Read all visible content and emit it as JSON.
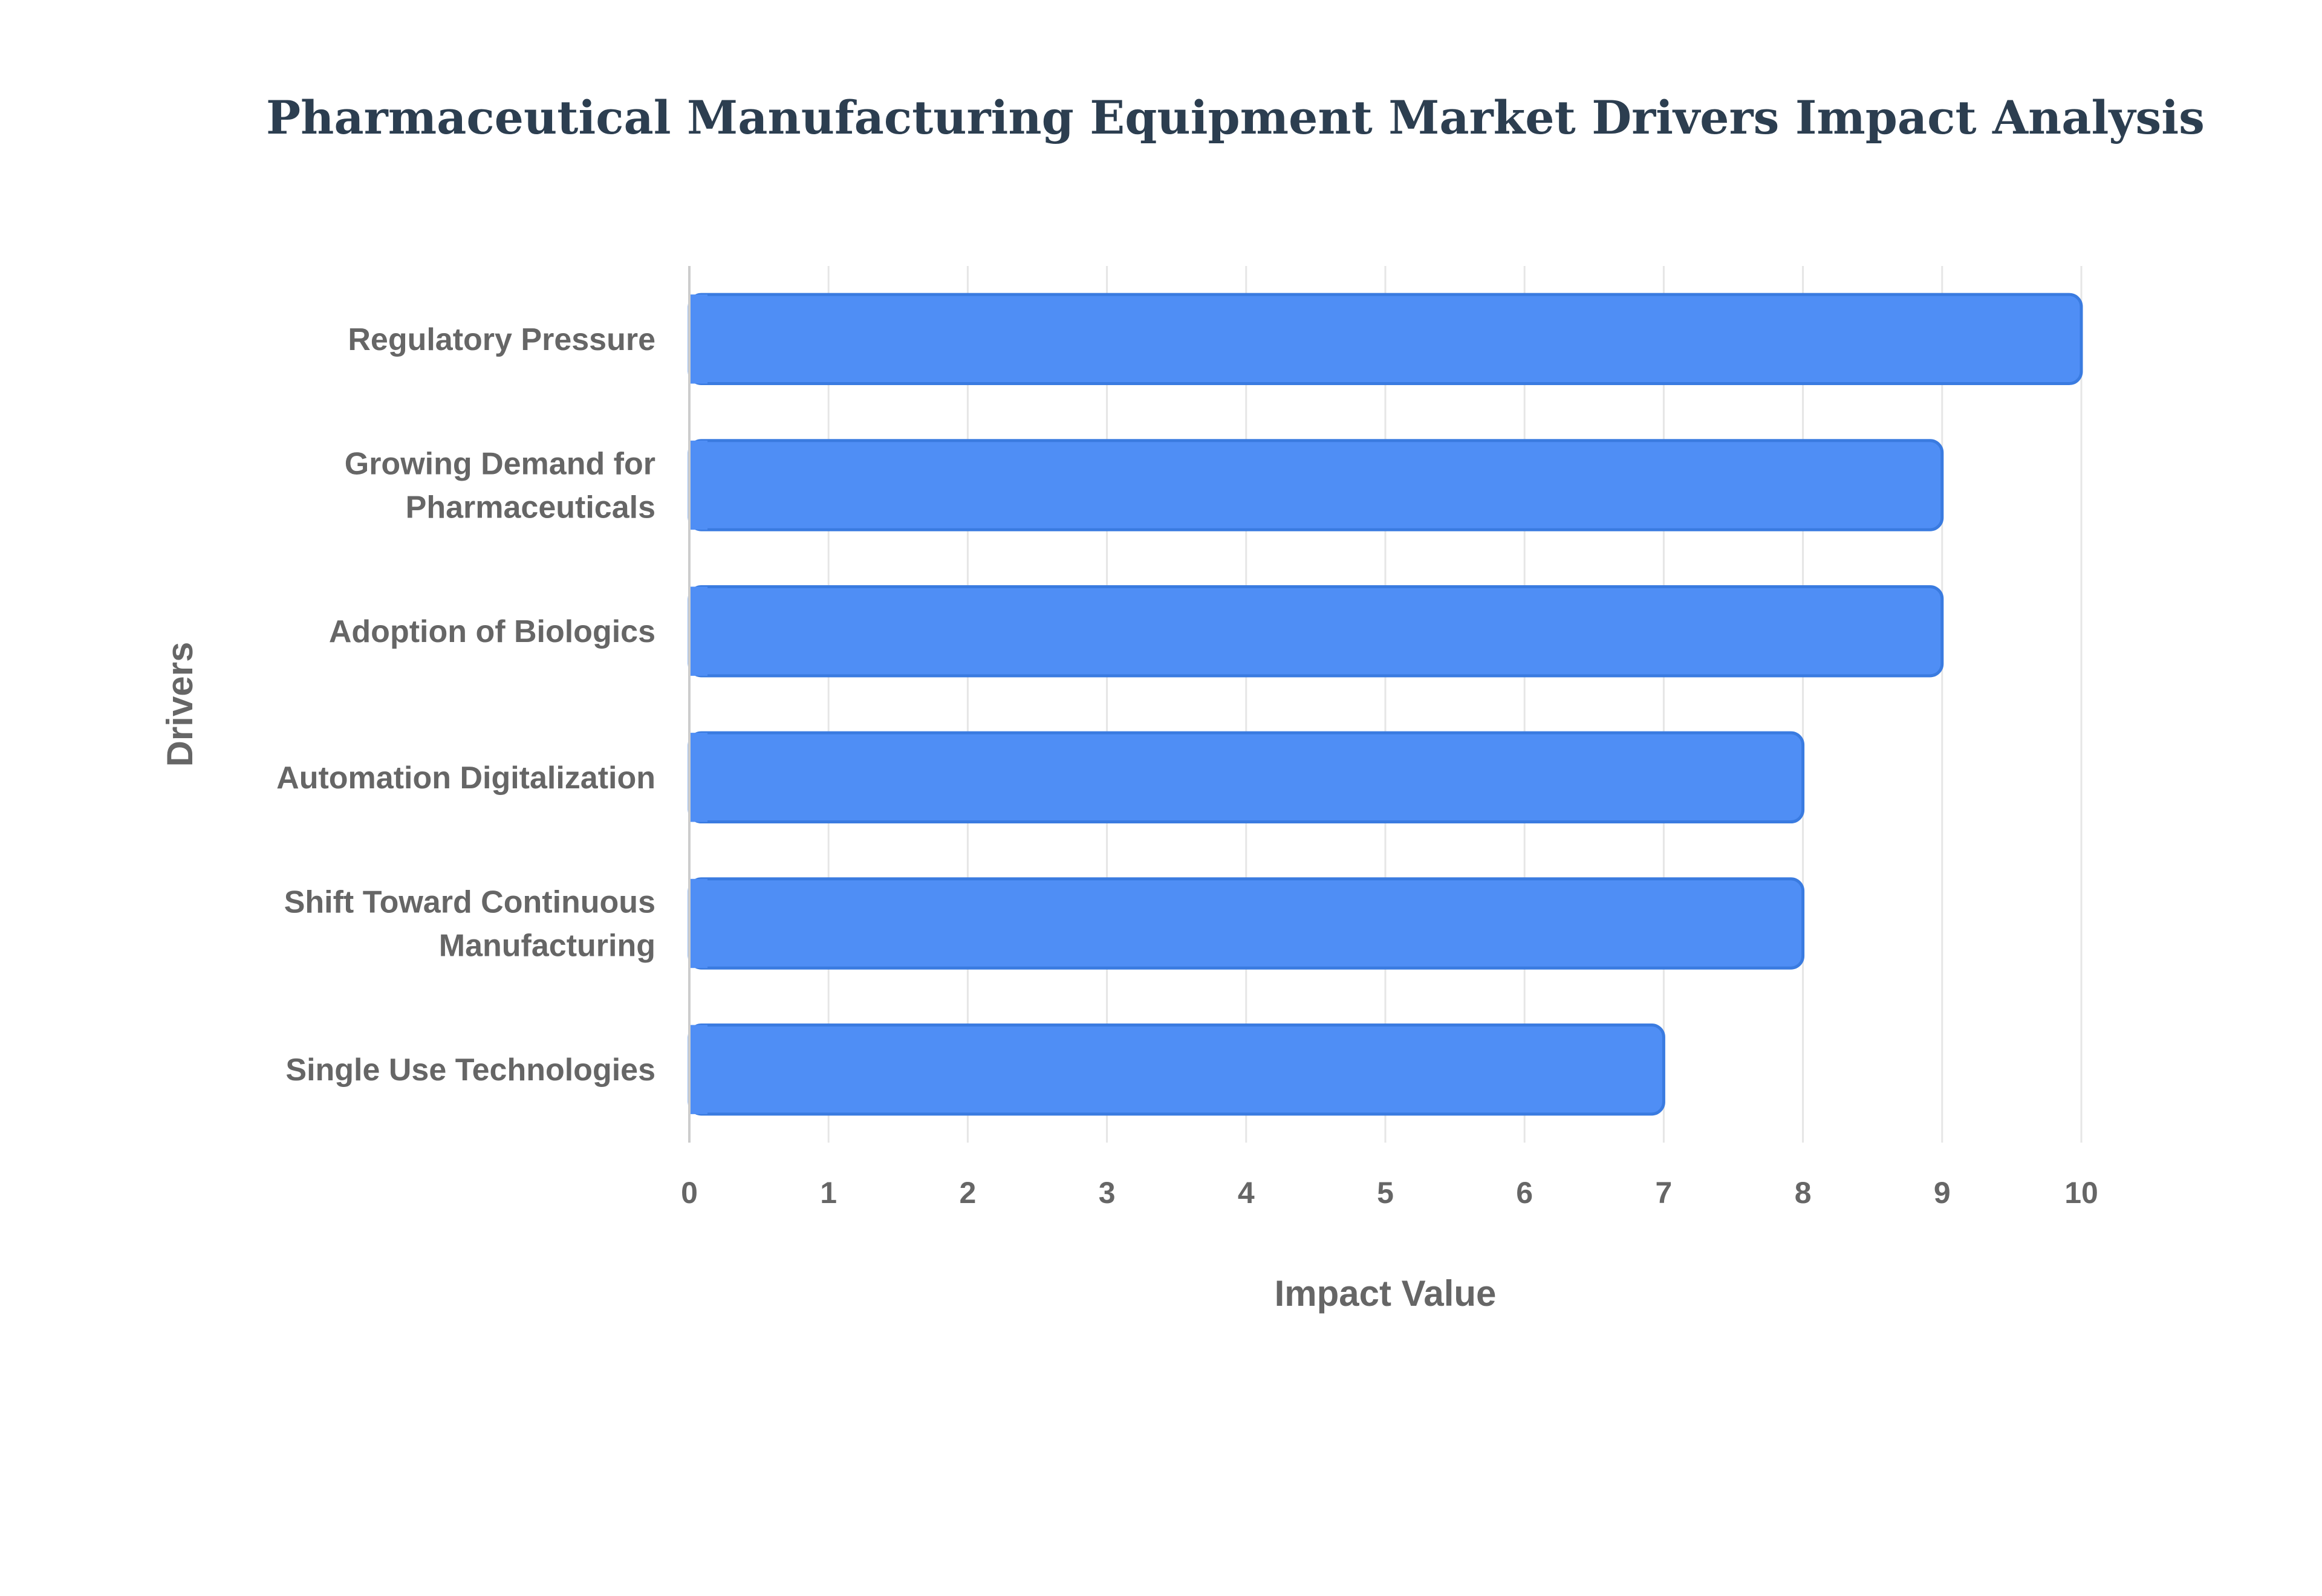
{
  "chart_data": {
    "type": "bar",
    "orientation": "horizontal",
    "title": "Pharmaceutical Manufacturing Equipment Market Drivers Impact Analysis",
    "xlabel": "Impact Value",
    "ylabel": "Drivers",
    "categories": [
      [
        "Regulatory Pressure"
      ],
      [
        "Growing Demand for",
        "Pharmaceuticals"
      ],
      [
        "Adoption of Biologics"
      ],
      [
        "Automation Digitalization"
      ],
      [
        "Shift Toward Continuous",
        "Manufacturing"
      ],
      [
        "Single Use Technologies"
      ]
    ],
    "values": [
      10,
      9,
      9,
      8,
      8,
      7
    ],
    "xlim": [
      0,
      10
    ],
    "xticks": [
      "0",
      "1",
      "2",
      "3",
      "4",
      "5",
      "6",
      "7",
      "8",
      "9",
      "10"
    ],
    "grid": true,
    "colors": {
      "bar_fill": "#4f8ef5",
      "bar_stroke": "#3a7be0",
      "grid": "#e6e6e6",
      "axis": "#cccccc",
      "text": "#666666",
      "title": "#2c3e50"
    }
  }
}
